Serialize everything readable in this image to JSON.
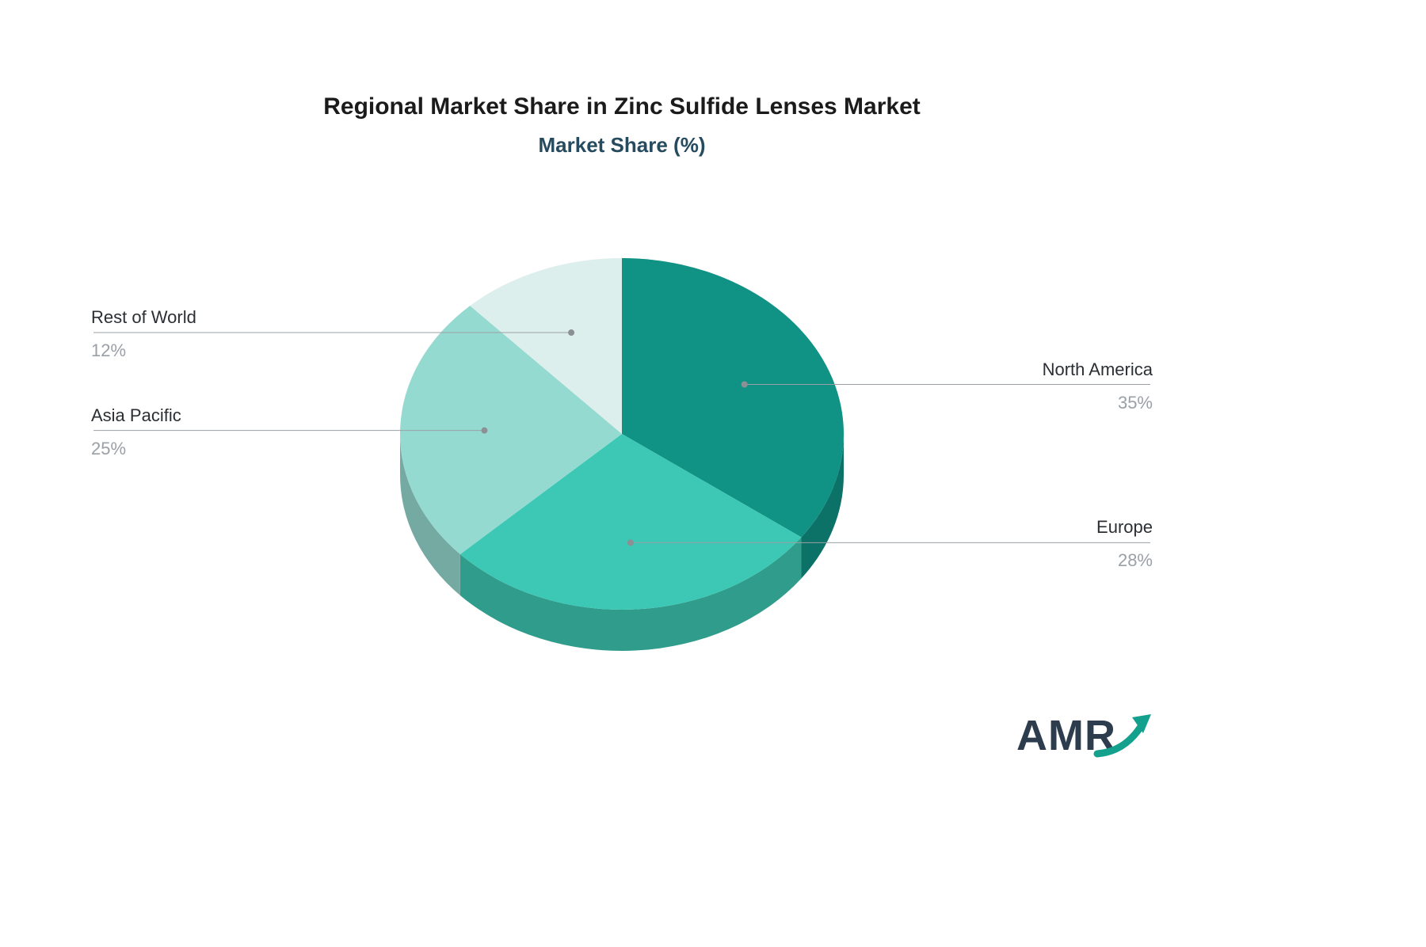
{
  "title": "Regional Market Share in Zinc Sulfide Lenses Market",
  "subtitle": "Market Share (%)",
  "chart_data": {
    "type": "pie",
    "title": "Regional Market Share in Zinc Sulfide Lenses Market",
    "subtitle": "Market Share (%)",
    "unit": "%",
    "categories": [
      "North America",
      "Europe",
      "Asia Pacific",
      "Rest of World"
    ],
    "values": [
      35,
      28,
      25,
      12
    ],
    "colors": [
      "#109285",
      "#3cc8b4",
      "#95dad0",
      "#ddefec"
    ],
    "direction": "clockwise",
    "start_angle_deg": 0,
    "style": "3d-pie",
    "labels": [
      {
        "name": "North America",
        "pct": "35%",
        "side": "right"
      },
      {
        "name": "Europe",
        "pct": "28%",
        "side": "right"
      },
      {
        "name": "Asia Pacific",
        "pct": "25%",
        "side": "left"
      },
      {
        "name": "Rest of World",
        "pct": "12%",
        "side": "left"
      }
    ],
    "leader_line_color": "#9aa0a6",
    "background": "#ffffff"
  },
  "logo": {
    "text": "AMR",
    "color": "#2e3d4e",
    "arrow_color": "#13a08c"
  }
}
